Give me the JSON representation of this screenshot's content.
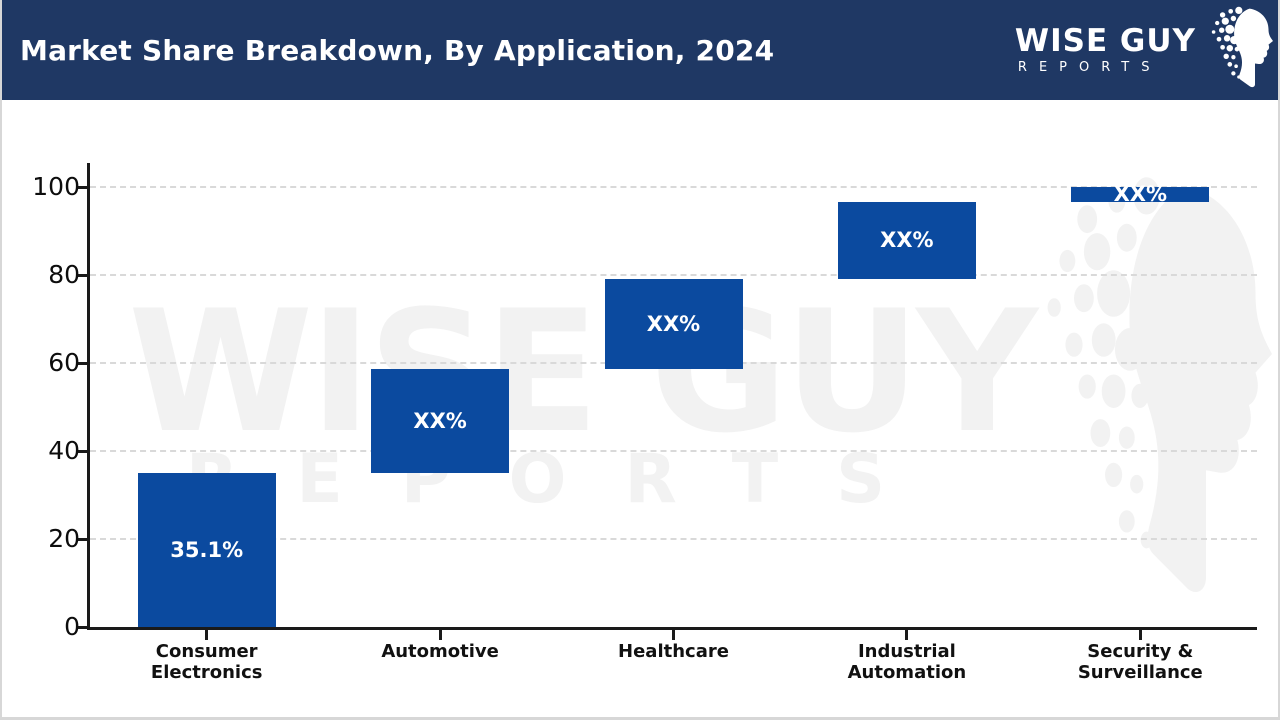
{
  "header": {
    "title": "Market Share Breakdown, By Application, 2024",
    "bg_color": "#1f3864",
    "logo": {
      "line1": "WISE GUY",
      "line2": "REPORTS"
    }
  },
  "watermark": {
    "line1": "WISE GUY",
    "line2": "REPORTS"
  },
  "chart_data": {
    "type": "bar",
    "subtype": "waterfall (cumulative market-share segments)",
    "title": "Market Share Breakdown, By Application, 2024",
    "categories": [
      "Consumer\nElectronics",
      "Automotive",
      "Healthcare",
      "Industrial\nAutomation",
      "Security &\nSurveillance"
    ],
    "segments": [
      {
        "category": "Consumer Electronics",
        "start": 0,
        "end": 35.1,
        "value": 35.1,
        "label": "35.1%"
      },
      {
        "category": "Automotive",
        "start": 35.1,
        "end": 58.6,
        "value": 23.5,
        "label": "XX%"
      },
      {
        "category": "Healthcare",
        "start": 58.6,
        "end": 79.1,
        "value": 20.5,
        "label": "XX%"
      },
      {
        "category": "Industrial Automation",
        "start": 79.1,
        "end": 96.6,
        "value": 17.5,
        "label": "XX%"
      },
      {
        "category": "Security & Surveillance",
        "start": 96.6,
        "end": 100.0,
        "value": 3.4,
        "label": "XX%"
      }
    ],
    "xlabel": "",
    "ylabel": "",
    "ylim": [
      0,
      100
    ],
    "yticks": [
      0,
      20,
      40,
      60,
      80,
      100
    ],
    "grid": "horizontal dashed",
    "legend": "none",
    "bar_color": "#0b4a9f",
    "bar_label_color": "#ffffff",
    "axis_color": "#1a1a1a",
    "gridline_color": "#d9d9d9"
  }
}
